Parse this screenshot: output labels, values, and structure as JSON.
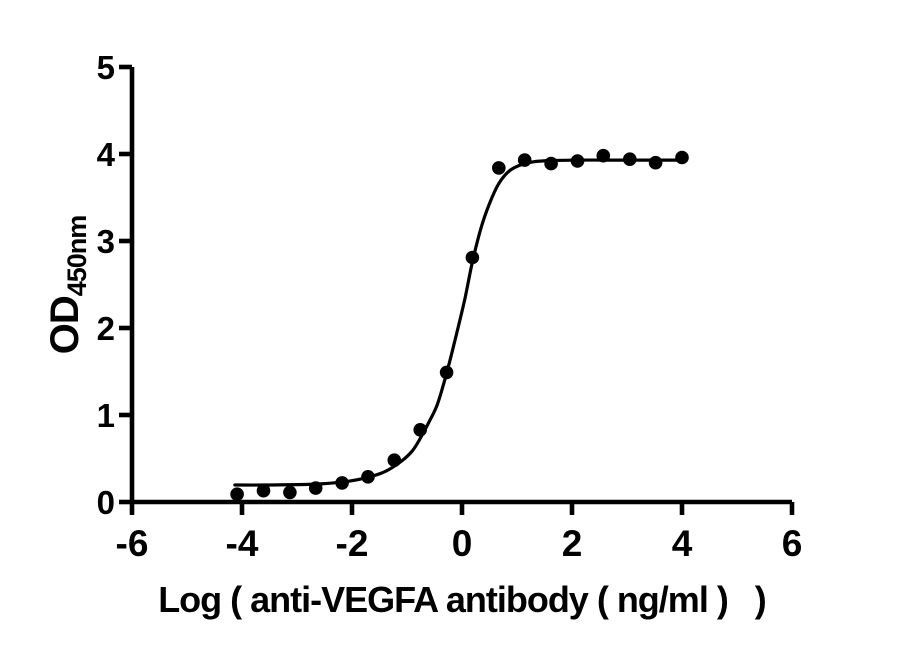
{
  "chart_data": {
    "type": "scatter",
    "subtype": "sigmoidal-dose-response-elisa-binding",
    "title": "",
    "xlabel": "Log ( anti-VEGFA antibody ( ng/ml )   )",
    "ylabel_main": "OD",
    "ylabel_sub": "450nm",
    "xlim": [
      -6,
      6
    ],
    "ylim": [
      0,
      5
    ],
    "x_ticks": [
      "-6",
      "-4",
      "-2",
      "0",
      "2",
      "4",
      "6"
    ],
    "x_tick_values": [
      -6,
      -4,
      -2,
      0,
      2,
      4,
      6
    ],
    "y_ticks": [
      "0",
      "1",
      "2",
      "3",
      "4",
      "5"
    ],
    "y_tick_values": [
      0,
      1,
      2,
      3,
      4,
      5
    ],
    "grid": false,
    "legend": null,
    "point_color": "#000000",
    "line_color": "#000000",
    "axis_color": "#000000",
    "background": "#ffffff",
    "points": [
      {
        "x": -4.09,
        "y": 0.09
      },
      {
        "x": -3.61,
        "y": 0.13
      },
      {
        "x": -3.13,
        "y": 0.11
      },
      {
        "x": -2.66,
        "y": 0.16
      },
      {
        "x": -2.18,
        "y": 0.22
      },
      {
        "x": -1.71,
        "y": 0.29
      },
      {
        "x": -1.23,
        "y": 0.48
      },
      {
        "x": -0.76,
        "y": 0.83
      },
      {
        "x": -0.28,
        "y": 1.49
      },
      {
        "x": 0.19,
        "y": 2.81
      },
      {
        "x": 0.67,
        "y": 3.84
      },
      {
        "x": 1.14,
        "y": 3.93
      },
      {
        "x": 1.62,
        "y": 3.89
      },
      {
        "x": 2.1,
        "y": 3.92
      },
      {
        "x": 2.57,
        "y": 3.98
      },
      {
        "x": 3.05,
        "y": 3.94
      },
      {
        "x": 3.52,
        "y": 3.9
      },
      {
        "x": 4.0,
        "y": 3.96
      }
    ],
    "fit_curve": {
      "model": "four-parameter-logistic",
      "bottom": 0.2,
      "top": 3.93,
      "waypoints": [
        [
          -4.13,
          0.195
        ],
        [
          -3.6,
          0.195
        ],
        [
          -3.0,
          0.2
        ],
        [
          -2.5,
          0.212
        ],
        [
          -2.1,
          0.235
        ],
        [
          -1.7,
          0.285
        ],
        [
          -1.4,
          0.35
        ],
        [
          -1.1,
          0.47
        ],
        [
          -0.9,
          0.59
        ],
        [
          -0.76,
          0.73
        ],
        [
          -0.6,
          0.92
        ],
        [
          -0.45,
          1.12
        ],
        [
          -0.28,
          1.48
        ],
        [
          -0.1,
          1.93
        ],
        [
          0.05,
          2.33
        ],
        [
          0.19,
          2.76
        ],
        [
          0.35,
          3.16
        ],
        [
          0.5,
          3.43
        ],
        [
          0.67,
          3.66
        ],
        [
          0.85,
          3.8
        ],
        [
          1.05,
          3.87
        ],
        [
          1.3,
          3.91
        ],
        [
          1.62,
          3.925
        ],
        [
          2.1,
          3.93
        ],
        [
          2.6,
          3.93
        ],
        [
          3.1,
          3.93
        ],
        [
          3.55,
          3.93
        ],
        [
          4.0,
          3.93
        ]
      ]
    }
  }
}
